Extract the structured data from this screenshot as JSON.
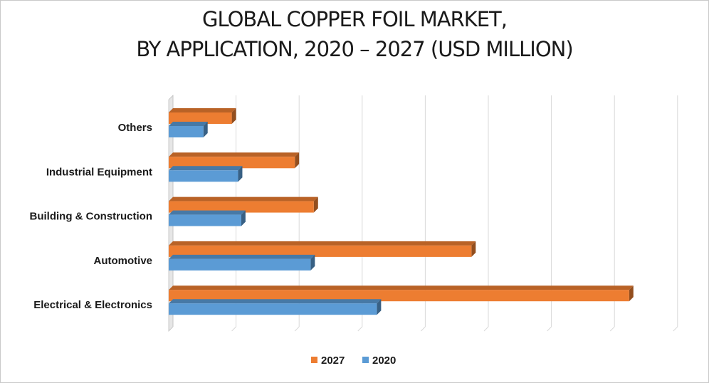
{
  "chart_data": {
    "type": "bar",
    "orientation": "horizontal",
    "title_line1": "GLOBAL COPPER FOIL MARKET,",
    "title_line2": "BY APPLICATION, 2020 – 2027 (USD MILLION)",
    "categories": [
      "Others",
      "Industrial Equipment",
      "Building & Construction",
      "Automotive",
      "Electrical & Electronics"
    ],
    "series": [
      {
        "name": "2027",
        "color": "#ED7D31",
        "values": [
          1.0,
          2.0,
          2.3,
          4.8,
          7.3
        ]
      },
      {
        "name": "2020",
        "color": "#5B9BD5",
        "values": [
          0.55,
          1.1,
          1.15,
          2.25,
          3.3
        ]
      }
    ],
    "xlim": [
      0,
      8
    ],
    "gridlines": true,
    "axis_labels_shown": false,
    "legend_position": "bottom",
    "style": "3d-bars"
  }
}
